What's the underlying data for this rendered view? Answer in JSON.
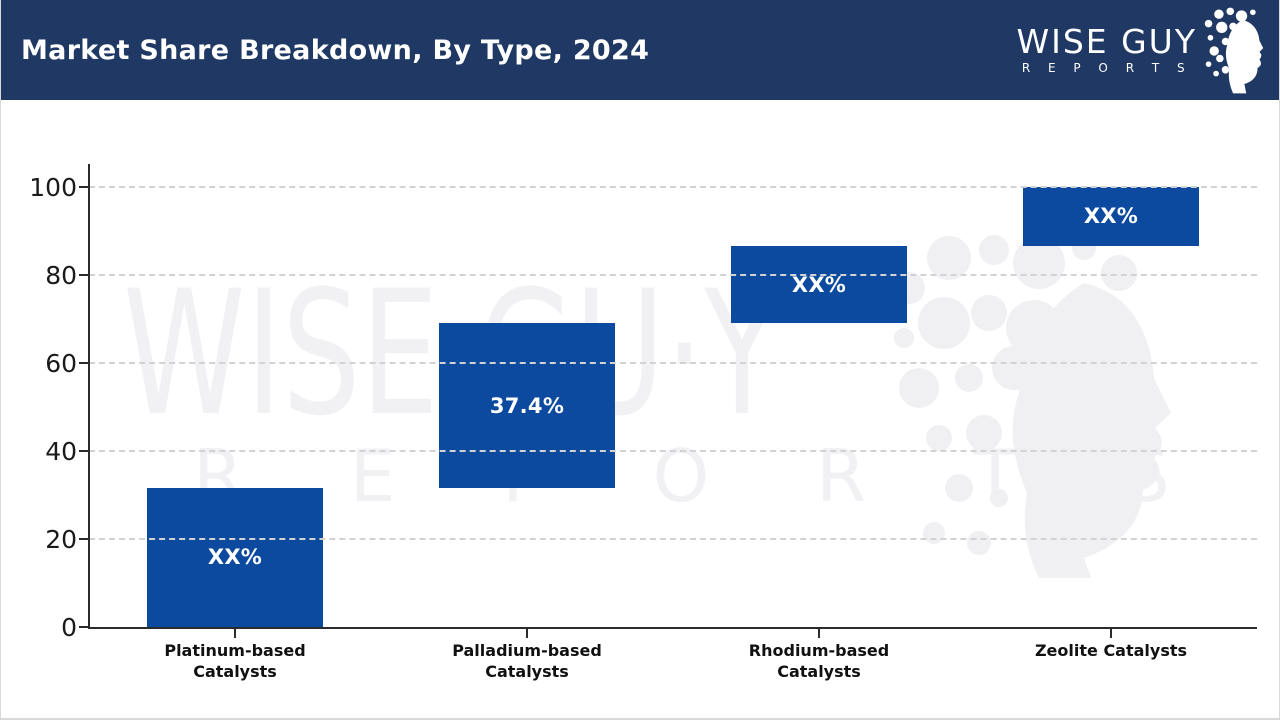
{
  "header": {
    "title": "Market Share Breakdown, By Type, 2024",
    "logo_line1": "WISE GUY",
    "logo_line2": "R E P O R T S",
    "bg_color": "#1F3864"
  },
  "watermark": {
    "line1": "WISE GU·Y",
    "line2": "R E P O R T S"
  },
  "colors": {
    "header_bg": "#1F3864",
    "bar": "#0B4A9F",
    "grid": "#D2D2D2",
    "axis": "#2B2B2B",
    "watermark": "#F1F1F4"
  },
  "chart_data": {
    "type": "bar",
    "subtype": "waterfall",
    "title": "Market Share Breakdown, By Type, 2024",
    "xlabel": "",
    "ylabel": "",
    "ylim": [
      0,
      105
    ],
    "yticks": [
      0,
      20,
      40,
      60,
      80,
      100
    ],
    "grid": "horizontal-dashed",
    "legend": "none",
    "bar_color": "#0B4A9F",
    "categories": [
      [
        "Platinum-based",
        "Catalysts"
      ],
      [
        "Palladium-based",
        "Catalysts"
      ],
      [
        "Rhodium-based",
        "Catalysts"
      ],
      [
        "Zeolite Catalysts"
      ]
    ],
    "segments": [
      {
        "category": "Platinum-based Catalysts",
        "start": 0,
        "end": 31.6,
        "label": "XX%"
      },
      {
        "category": "Palladium-based Catalysts",
        "start": 31.6,
        "end": 69.0,
        "label": "37.4%"
      },
      {
        "category": "Rhodium-based Catalysts",
        "start": 69.0,
        "end": 86.6,
        "label": "XX%"
      },
      {
        "category": "Zeolite Catalysts",
        "start": 86.6,
        "end": 100,
        "label": "XX%"
      }
    ]
  }
}
